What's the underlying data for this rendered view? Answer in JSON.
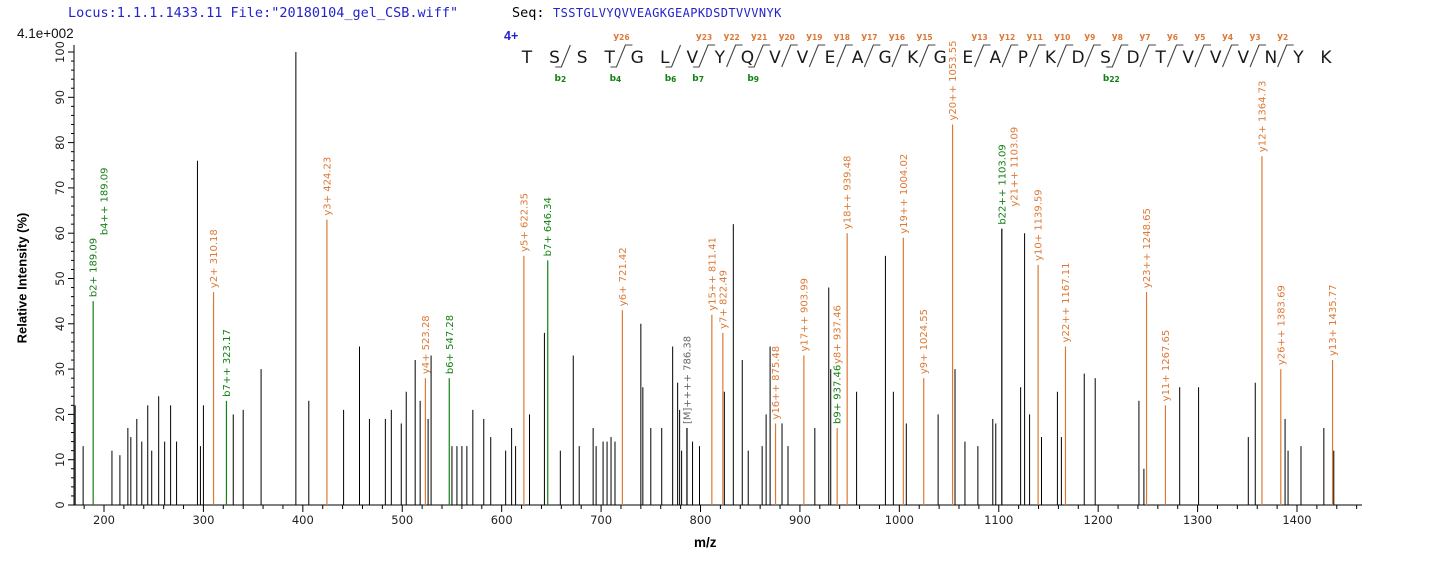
{
  "header": {
    "locus_file": "Locus:1.1.1.1433.11 File:\"20180104_gel_CSB.wiff\"",
    "seq_label": "Seq:",
    "sequence": "TSSTGLVYQVVEAGKGEAPKDSDTVVVNYK"
  },
  "base_peak_intensity": "4.1e+002",
  "precursor_charge": "4+",
  "colors": {
    "y_ion": "#DD7936",
    "b_ion": "#148014",
    "header_blue": "#2323CE",
    "peak_default": "#000000",
    "precursor_label": "#666666",
    "fragment_mark": "#444444"
  },
  "chart_data": {
    "type": "bar",
    "title": "MS/MS fragment ion spectrum",
    "xlabel": "m/z",
    "ylabel": "Relative  Intensity (%)",
    "xlim": [
      170,
      1462
    ],
    "ylim": [
      0,
      100
    ],
    "grid": false,
    "x_major_tick_step": 100,
    "x_minor_tick_step": 20,
    "y_major_tick_step": 10,
    "y_minor_tick_step": 2,
    "x_tick_labels": [
      200,
      300,
      400,
      500,
      600,
      700,
      800,
      900,
      1000,
      1100,
      1200,
      1300,
      1400
    ],
    "y_tick_labels": [
      0,
      10,
      20,
      30,
      40,
      50,
      60,
      70,
      80,
      90,
      100
    ],
    "peptide": {
      "sequence": "TSSTGLVYQVVEAGKGEAPKDSDTVVVNYK",
      "y_ion_gaps": {
        "4": "y26",
        "7": "y23",
        "8": "y22",
        "9": "y21",
        "10": "y20",
        "11": "y19",
        "12": "y18",
        "13": "y17",
        "14": "y16",
        "15": "y15",
        "17": "y13",
        "18": "y12",
        "19": "y11",
        "20": "y10",
        "21": "y9",
        "22": "y8",
        "23": "y7",
        "24": "y6",
        "25": "y5",
        "26": "y4",
        "27": "y3",
        "28": "y2"
      },
      "b_ion_gaps": {
        "2": "b2",
        "4": "b4",
        "6": "b6",
        "7": "b7",
        "9": "b9",
        "22": "b22"
      }
    },
    "peaks": [
      {
        "mz": 171,
        "i": 22
      },
      {
        "mz": 179,
        "i": 13
      },
      {
        "mz": 189.09,
        "i": 45,
        "s": "b",
        "labels": [
          {
            "t": "b2+ 189.09",
            "c": "b"
          },
          {
            "t": "b4++ 189.09",
            "c": "b",
            "dx": 11,
            "dy": -62
          }
        ]
      },
      {
        "mz": 208,
        "i": 12
      },
      {
        "mz": 216,
        "i": 11
      },
      {
        "mz": 224,
        "i": 17
      },
      {
        "mz": 227,
        "i": 15
      },
      {
        "mz": 233,
        "i": 19
      },
      {
        "mz": 238,
        "i": 14
      },
      {
        "mz": 244,
        "i": 22
      },
      {
        "mz": 248,
        "i": 12
      },
      {
        "mz": 255,
        "i": 24
      },
      {
        "mz": 261,
        "i": 14
      },
      {
        "mz": 267,
        "i": 22
      },
      {
        "mz": 273,
        "i": 14
      },
      {
        "mz": 294,
        "i": 76
      },
      {
        "mz": 297,
        "i": 13
      },
      {
        "mz": 300,
        "i": 22
      },
      {
        "mz": 310.18,
        "i": 47,
        "s": "y",
        "labels": [
          {
            "t": "y2+ 310.18",
            "c": "y"
          }
        ]
      },
      {
        "mz": 323.17,
        "i": 23,
        "s": "b",
        "labels": [
          {
            "t": "b7++ 323.17",
            "c": "b"
          }
        ]
      },
      {
        "mz": 330,
        "i": 20
      },
      {
        "mz": 340,
        "i": 21
      },
      {
        "mz": 358,
        "i": 30
      },
      {
        "mz": 393,
        "i": 100
      },
      {
        "mz": 406,
        "i": 23
      },
      {
        "mz": 424.23,
        "i": 63,
        "s": "y",
        "labels": [
          {
            "t": "y3+ 424.23",
            "c": "y"
          }
        ]
      },
      {
        "mz": 441,
        "i": 21
      },
      {
        "mz": 457,
        "i": 35
      },
      {
        "mz": 467,
        "i": 19
      },
      {
        "mz": 483,
        "i": 19
      },
      {
        "mz": 489,
        "i": 21
      },
      {
        "mz": 499,
        "i": 18
      },
      {
        "mz": 504,
        "i": 25
      },
      {
        "mz": 513,
        "i": 32
      },
      {
        "mz": 518,
        "i": 23
      },
      {
        "mz": 523.28,
        "i": 28,
        "s": "y",
        "labels": [
          {
            "t": "y4+ 523.28",
            "c": "y"
          }
        ]
      },
      {
        "mz": 526,
        "i": 19
      },
      {
        "mz": 529,
        "i": 33
      },
      {
        "mz": 547.28,
        "i": 28,
        "s": "b",
        "labels": [
          {
            "t": "b6+ 547.28",
            "c": "b"
          }
        ]
      },
      {
        "mz": 550,
        "i": 13
      },
      {
        "mz": 555,
        "i": 13
      },
      {
        "mz": 560,
        "i": 13
      },
      {
        "mz": 565,
        "i": 13
      },
      {
        "mz": 571,
        "i": 21
      },
      {
        "mz": 582,
        "i": 19
      },
      {
        "mz": 589,
        "i": 15
      },
      {
        "mz": 604,
        "i": 12
      },
      {
        "mz": 610,
        "i": 17
      },
      {
        "mz": 614,
        "i": 13
      },
      {
        "mz": 622.35,
        "i": 55,
        "s": "y",
        "labels": [
          {
            "t": "y5+ 622.35",
            "c": "y"
          }
        ]
      },
      {
        "mz": 628,
        "i": 20
      },
      {
        "mz": 643,
        "i": 38
      },
      {
        "mz": 646.34,
        "i": 54,
        "s": "b",
        "labels": [
          {
            "t": "b7+ 646.34",
            "c": "b"
          }
        ]
      },
      {
        "mz": 659,
        "i": 12
      },
      {
        "mz": 672,
        "i": 33
      },
      {
        "mz": 678,
        "i": 13
      },
      {
        "mz": 692,
        "i": 17
      },
      {
        "mz": 695,
        "i": 13
      },
      {
        "mz": 702,
        "i": 14
      },
      {
        "mz": 706,
        "i": 14
      },
      {
        "mz": 710,
        "i": 15
      },
      {
        "mz": 714,
        "i": 14
      },
      {
        "mz": 721.42,
        "i": 43,
        "s": "y",
        "labels": [
          {
            "t": "y6+ 721.42",
            "c": "y"
          }
        ]
      },
      {
        "mz": 740,
        "i": 40
      },
      {
        "mz": 742,
        "i": 26
      },
      {
        "mz": 750,
        "i": 17
      },
      {
        "mz": 761,
        "i": 17
      },
      {
        "mz": 772,
        "i": 35
      },
      {
        "mz": 777,
        "i": 27
      },
      {
        "mz": 779,
        "i": 21
      },
      {
        "mz": 781,
        "i": 12
      },
      {
        "mz": 786.38,
        "i": 17,
        "s": "k",
        "labels": [
          {
            "t": "[M]++++ 786.38",
            "c": "M"
          }
        ]
      },
      {
        "mz": 792,
        "i": 14
      },
      {
        "mz": 799,
        "i": 13
      },
      {
        "mz": 811.41,
        "i": 42,
        "s": "y",
        "labels": [
          {
            "t": "y15++ 811.41",
            "c": "y"
          }
        ]
      },
      {
        "mz": 822.49,
        "i": 38,
        "s": "y",
        "labels": [
          {
            "t": "y7+ 822.49",
            "c": "y"
          }
        ]
      },
      {
        "mz": 824,
        "i": 25
      },
      {
        "mz": 833,
        "i": 62
      },
      {
        "mz": 842,
        "i": 32
      },
      {
        "mz": 848,
        "i": 12
      },
      {
        "mz": 862,
        "i": 13
      },
      {
        "mz": 866,
        "i": 20
      },
      {
        "mz": 870,
        "i": 35
      },
      {
        "mz": 875.48,
        "i": 18,
        "s": "y",
        "labels": [
          {
            "t": "y16++ 875.48",
            "c": "y"
          }
        ]
      },
      {
        "mz": 882,
        "i": 18
      },
      {
        "mz": 888,
        "i": 13
      },
      {
        "mz": 903.99,
        "i": 33,
        "s": "y",
        "labels": [
          {
            "t": "y17++ 903.99",
            "c": "y"
          }
        ]
      },
      {
        "mz": 915,
        "i": 17
      },
      {
        "mz": 929,
        "i": 48
      },
      {
        "mz": 931,
        "i": 30
      },
      {
        "mz": 937.46,
        "i": 17,
        "s": "y",
        "labels": [
          {
            "t": "b9+ 937.46",
            "c": "b"
          },
          {
            "t": "y8+ 937.46",
            "c": "y",
            "dy": -60
          }
        ]
      },
      {
        "mz": 939.48,
        "i": 60,
        "s": "y",
        "line_dx": 8,
        "labels": [
          {
            "t": "y18++ 939.48",
            "c": "y"
          }
        ]
      },
      {
        "mz": 957,
        "i": 25
      },
      {
        "mz": 986,
        "i": 55
      },
      {
        "mz": 994,
        "i": 25
      },
      {
        "mz": 1004.02,
        "i": 59,
        "s": "y",
        "labels": [
          {
            "t": "y19++ 1004.02",
            "c": "y"
          }
        ]
      },
      {
        "mz": 1007,
        "i": 18
      },
      {
        "mz": 1024.55,
        "i": 28,
        "s": "y",
        "labels": [
          {
            "t": "y9+ 1024.55",
            "c": "y"
          }
        ]
      },
      {
        "mz": 1039,
        "i": 20
      },
      {
        "mz": 1053.55,
        "i": 84,
        "s": "y",
        "labels": [
          {
            "t": "y20++ 1053.55",
            "c": "y"
          }
        ]
      },
      {
        "mz": 1056,
        "i": 30
      },
      {
        "mz": 1066,
        "i": 14
      },
      {
        "mz": 1079,
        "i": 13
      },
      {
        "mz": 1094,
        "i": 19
      },
      {
        "mz": 1097,
        "i": 18
      },
      {
        "mz": 1103.09,
        "i": 61,
        "s": "k",
        "labels": [
          {
            "t": "b22++ 1103.09",
            "c": "b"
          },
          {
            "t": "y21++ 1103.09",
            "c": "y",
            "dx": 12,
            "dy": -18
          }
        ]
      },
      {
        "mz": 1122,
        "i": 26
      },
      {
        "mz": 1126,
        "i": 60
      },
      {
        "mz": 1131,
        "i": 20
      },
      {
        "mz": 1139.59,
        "i": 53,
        "s": "y",
        "labels": [
          {
            "t": "y10+ 1139.59",
            "c": "y"
          }
        ]
      },
      {
        "mz": 1143,
        "i": 15
      },
      {
        "mz": 1159,
        "i": 25
      },
      {
        "mz": 1163,
        "i": 15
      },
      {
        "mz": 1167.11,
        "i": 35,
        "s": "y",
        "labels": [
          {
            "t": "y22++ 1167.11",
            "c": "y"
          }
        ]
      },
      {
        "mz": 1186,
        "i": 29
      },
      {
        "mz": 1197,
        "i": 28
      },
      {
        "mz": 1241,
        "i": 23
      },
      {
        "mz": 1246,
        "i": 8
      },
      {
        "mz": 1248.65,
        "i": 47,
        "s": "y",
        "labels": [
          {
            "t": "y23++ 1248.65",
            "c": "y"
          }
        ]
      },
      {
        "mz": 1267.65,
        "i": 22,
        "s": "y",
        "labels": [
          {
            "t": "y11+ 1267.65",
            "c": "y"
          }
        ]
      },
      {
        "mz": 1282,
        "i": 26
      },
      {
        "mz": 1301,
        "i": 26
      },
      {
        "mz": 1351,
        "i": 15
      },
      {
        "mz": 1358,
        "i": 27
      },
      {
        "mz": 1364.73,
        "i": 77,
        "s": "y",
        "labels": [
          {
            "t": "y12+ 1364.73",
            "c": "y"
          }
        ]
      },
      {
        "mz": 1383.69,
        "i": 30,
        "s": "y",
        "labels": [
          {
            "t": "y26++ 1383.69",
            "c": "y"
          }
        ]
      },
      {
        "mz": 1388,
        "i": 19
      },
      {
        "mz": 1391,
        "i": 12
      },
      {
        "mz": 1404,
        "i": 13
      },
      {
        "mz": 1427,
        "i": 17
      },
      {
        "mz": 1435.77,
        "i": 32,
        "s": "y",
        "labels": [
          {
            "t": "y13+ 1435.77",
            "c": "y"
          }
        ]
      },
      {
        "mz": 1437,
        "i": 12
      }
    ]
  }
}
